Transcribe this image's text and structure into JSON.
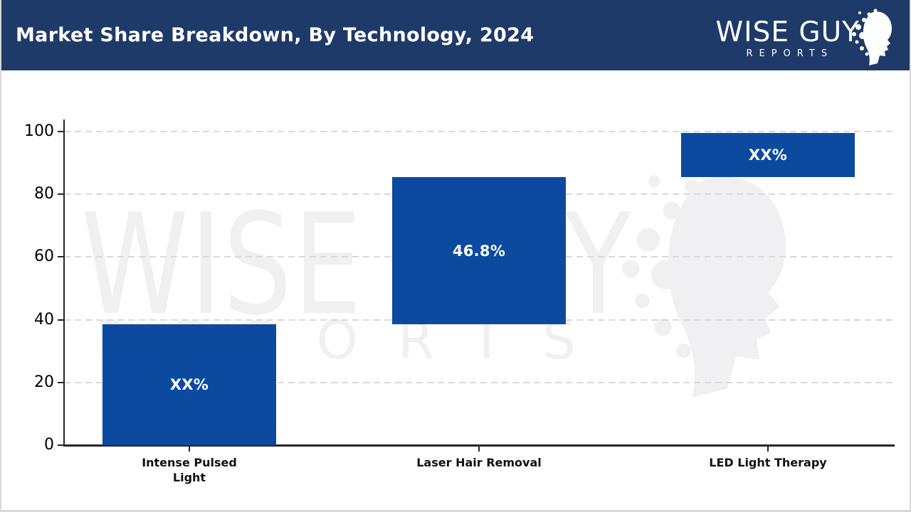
{
  "header": {
    "title": "Market Share Breakdown, By Technology, 2024",
    "logo_wordmark": "WISE GUY",
    "logo_subtitle": "REPORTS",
    "bg_color": "#1e3a68"
  },
  "watermark": {
    "wordmark": "WISE GUY",
    "subtitle": "REPORTS"
  },
  "chart_data": {
    "type": "bar",
    "subtype": "floating_stacked_percentage_bars",
    "title": "Market Share Breakdown, By Technology, 2024",
    "xlabel": "",
    "ylabel": "",
    "ylim": [
      0,
      100
    ],
    "yticks": [
      "0",
      "20",
      "40",
      "60",
      "80",
      "100"
    ],
    "grid": "horizontal-dashed",
    "legend": "none",
    "bar_color": "#0c4aa0",
    "bars": [
      {
        "category": "Intense Pulsed Light",
        "value_label": "XX%",
        "start": 0,
        "end": 38.6
      },
      {
        "category": "Laser Hair Removal",
        "value_label": "46.8%",
        "start": 38.6,
        "end": 85.4
      },
      {
        "category": "LED Light Therapy",
        "value_label": "XX%",
        "start": 85.4,
        "end": 99.5
      }
    ]
  }
}
